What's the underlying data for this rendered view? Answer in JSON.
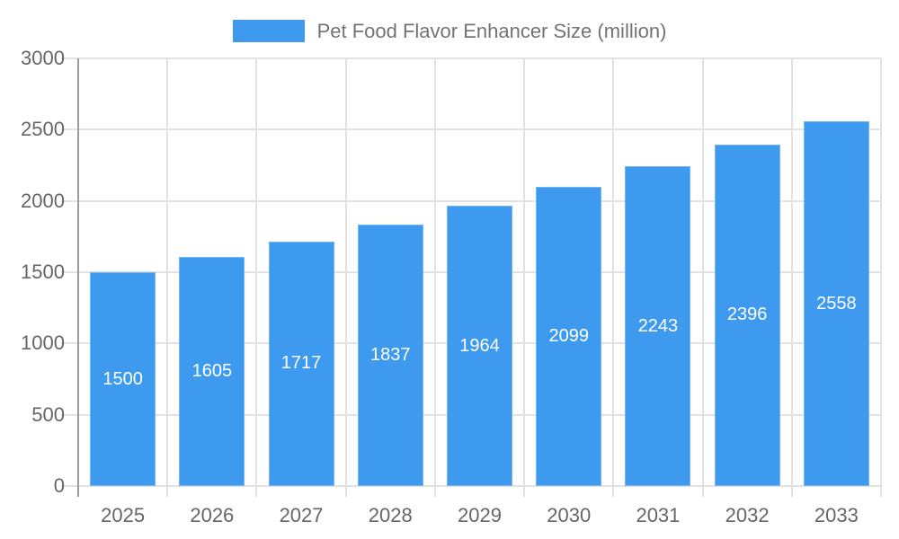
{
  "legend": {
    "label": "Pet Food Flavor Enhancer Size (million)"
  },
  "chart_data": {
    "type": "bar",
    "title": "Pet Food Flavor Enhancer Size (million)",
    "categories": [
      "2025",
      "2026",
      "2027",
      "2028",
      "2029",
      "2030",
      "2031",
      "2032",
      "2033"
    ],
    "values": [
      1500,
      1605,
      1717,
      1837,
      1964,
      2099,
      2243,
      2396,
      2558
    ],
    "xlabel": "",
    "ylabel": "",
    "ylim": [
      0,
      3000
    ],
    "yticks": [
      0,
      500,
      1000,
      1500,
      2000,
      2500,
      3000
    ],
    "grid": true,
    "legend_position": "top",
    "value_labels": "inside-center"
  },
  "colors": {
    "bar_fill": "#3E9AEF",
    "bar_border": "#74B5F3",
    "grid_line": "#E2E2E2",
    "axis_line": "#9B9B9B",
    "tick_label": "#666666",
    "legend_text": "#737373",
    "value_label": "#FFFFFF",
    "background": "#FFFFFF"
  }
}
